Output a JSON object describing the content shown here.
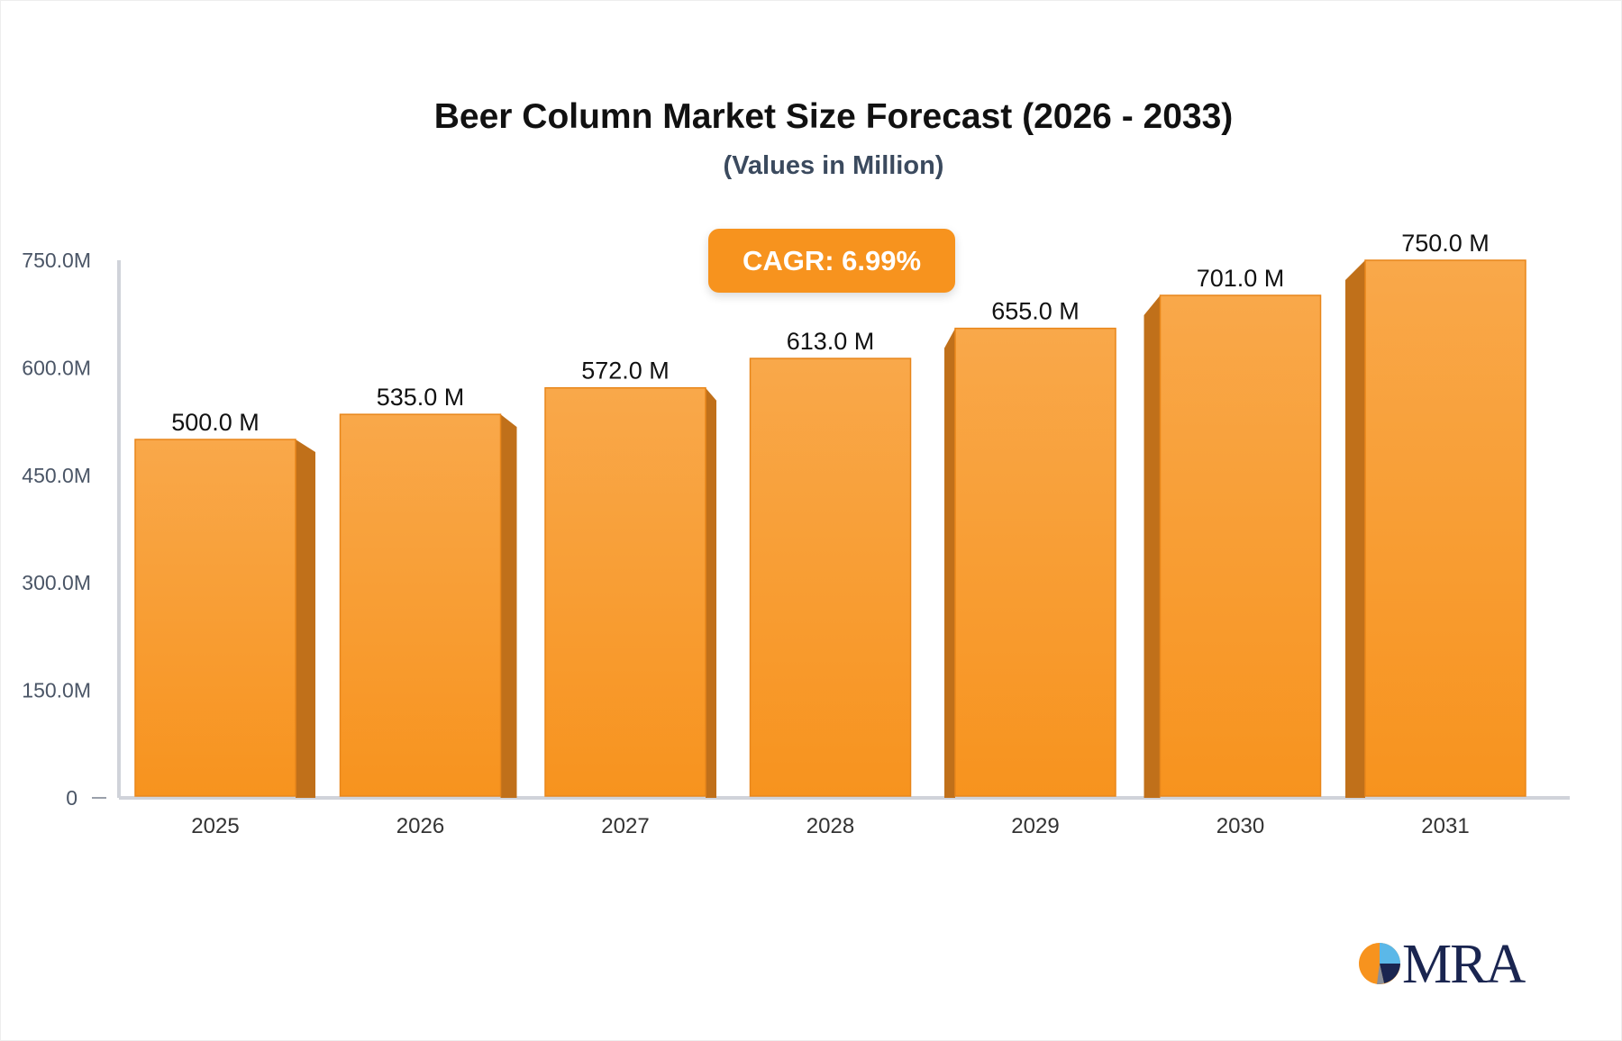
{
  "chart_data": {
    "type": "bar",
    "title": "Beer Column Market Size Forecast (2026 - 2033)",
    "subtitle": "(Values in Million)",
    "categories": [
      "2025",
      "2026",
      "2027",
      "2028",
      "2029",
      "2030",
      "2031"
    ],
    "values": [
      500.0,
      535.0,
      572.0,
      613.0,
      655.0,
      701.0,
      750.0
    ],
    "data_labels": [
      "500.0 M",
      "535.0 M",
      "572.0 M",
      "613.0 M",
      "655.0 M",
      "701.0 M",
      "750.0 M"
    ],
    "y_ticks": [
      0,
      150,
      300,
      450,
      600,
      750
    ],
    "y_tick_labels": [
      "0",
      "150.0M",
      "300.0M",
      "450.0M",
      "600.0M",
      "750.0M"
    ],
    "ylim": [
      0,
      750
    ],
    "xlabel": "",
    "ylabel": "",
    "grid": false,
    "annotation": "CAGR: 6.99%",
    "colors": {
      "bar_top": "#f9a84a",
      "bar_bottom": "#f7931e",
      "bar_side": "#c0701a",
      "axis": "#d0d3da"
    }
  },
  "logo": {
    "text": "MRA"
  }
}
